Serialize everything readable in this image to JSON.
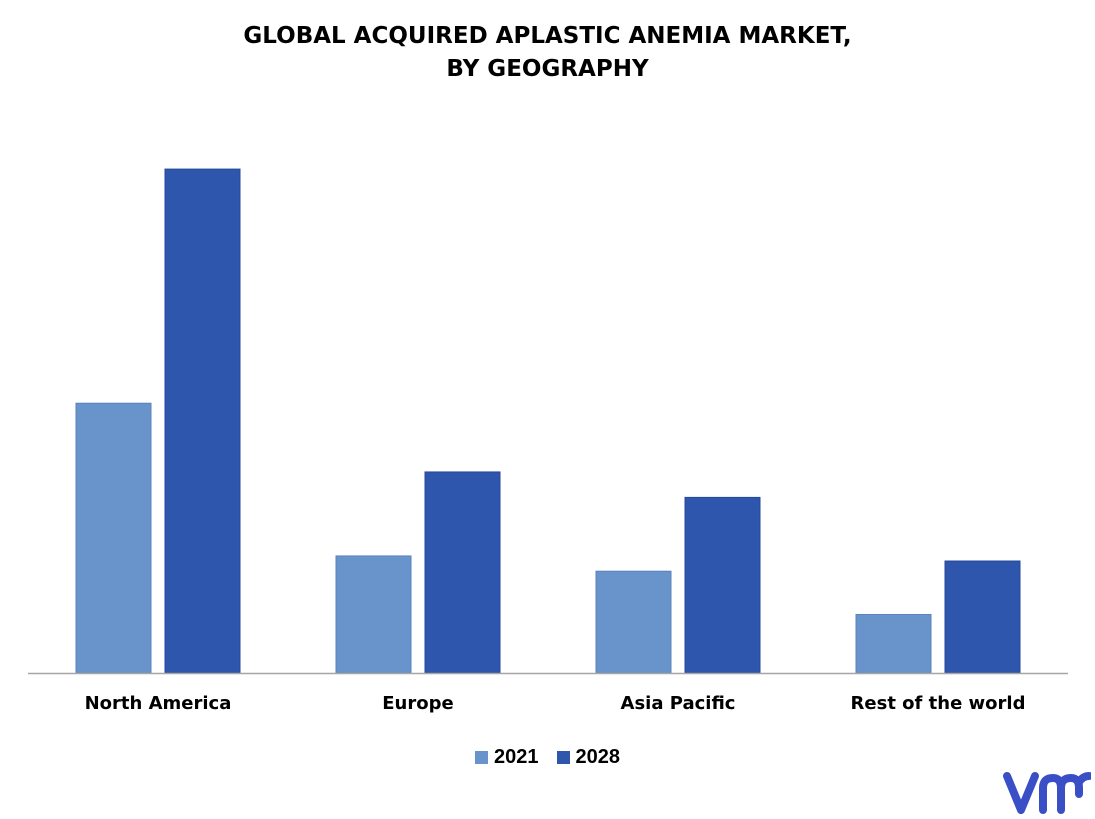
{
  "colors": {
    "series_2021": "#6993cb",
    "series_2028": "#2e56ad",
    "axis": "#a6a6a6",
    "logo": "#3a4fc6"
  },
  "logo": {
    "text": "vmr"
  },
  "chart_data": {
    "type": "bar",
    "title_lines": [
      "GLOBAL ACQUIRED APLASTIC ANEMIA MARKET,",
      "BY GEOGRAPHY"
    ],
    "categories": [
      "North America",
      "Europe",
      "Asia Pacific",
      "Rest of the world"
    ],
    "series": [
      {
        "name": "2021",
        "values": [
          53,
          23,
          20,
          11.5
        ]
      },
      {
        "name": "2028",
        "values": [
          99,
          39.5,
          34.5,
          22
        ]
      }
    ],
    "ylim": [
      0,
      100
    ],
    "grid": false,
    "legend": "bottom-center"
  }
}
